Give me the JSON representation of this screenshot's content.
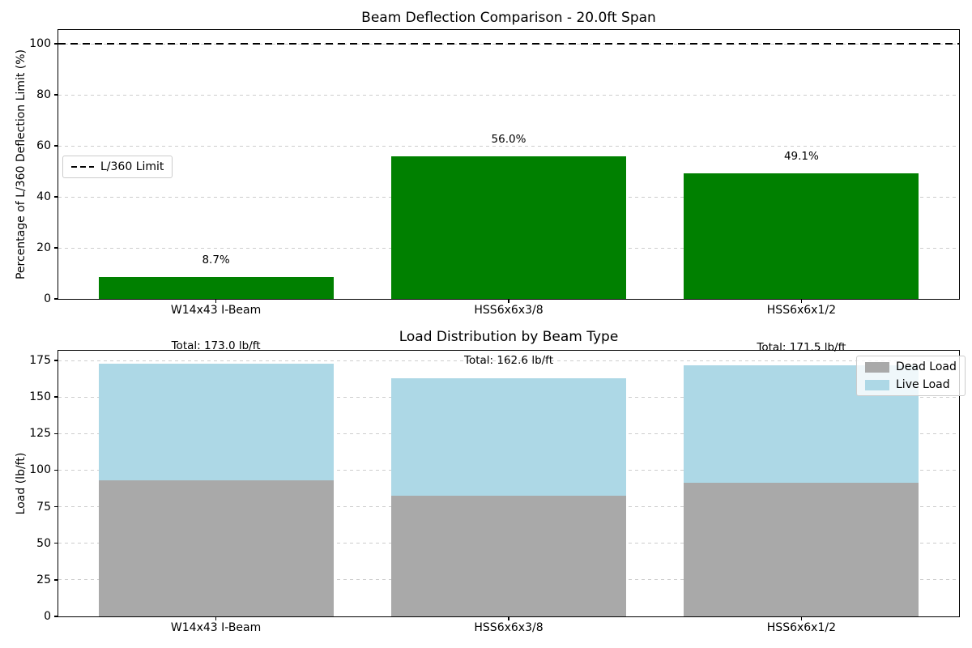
{
  "figure": {
    "background": "#ffffff",
    "text_color": "#000000",
    "grid_color": "#cdcdcd"
  },
  "chart_data": [
    {
      "type": "bar",
      "title": "Beam Deflection Comparison - 20.0ft Span",
      "xlabel": "",
      "ylabel": "Percentage of L/360 Deflection Limit (%)",
      "categories": [
        "W14x43 I-Beam",
        "HSS6x6x3/8",
        "HSS6x6x1/2"
      ],
      "values": [
        8.7,
        56.0,
        49.1
      ],
      "bar_labels": [
        "8.7%",
        "56.0%",
        "49.1%"
      ],
      "bar_color": "#008000",
      "ylim": [
        0,
        105.4
      ],
      "yticks": [
        0,
        20,
        40,
        60,
        80,
        100
      ],
      "grid": "dashed horizontal",
      "reference_line": {
        "y": 100,
        "color": "#000000",
        "style": "dashed",
        "label": "L/360 Limit"
      },
      "legend": {
        "position": "center-left",
        "entries": [
          {
            "label": "L/360 Limit",
            "marker": "dashed-line",
            "color": "#000000"
          }
        ]
      }
    },
    {
      "type": "stacked-bar",
      "title": "Load Distribution by Beam Type",
      "xlabel": "",
      "ylabel": "Load (lb/ft)",
      "categories": [
        "W14x43 I-Beam",
        "HSS6x6x3/8",
        "HSS6x6x1/2"
      ],
      "series": [
        {
          "name": "Dead Load",
          "values": [
            93.0,
            82.6,
            91.5
          ],
          "color": "#a9a9a9"
        },
        {
          "name": "Live Load",
          "values": [
            80.0,
            80.0,
            80.0
          ],
          "color": "#add8e6"
        }
      ],
      "totals": [
        173.0,
        162.6,
        171.5
      ],
      "total_labels": [
        "Total: 173.0 lb/ft",
        "Total: 162.6 lb/ft",
        "Total: 171.5 lb/ft"
      ],
      "ylim": [
        0,
        181.65
      ],
      "yticks": [
        0,
        25,
        50,
        75,
        100,
        125,
        150,
        175
      ],
      "grid": "dashed horizontal",
      "legend": {
        "position": "top-right",
        "entries": [
          {
            "label": "Dead Load",
            "marker": "patch",
            "color": "#a9a9a9"
          },
          {
            "label": "Live Load",
            "marker": "patch",
            "color": "#add8e6"
          }
        ]
      }
    }
  ]
}
